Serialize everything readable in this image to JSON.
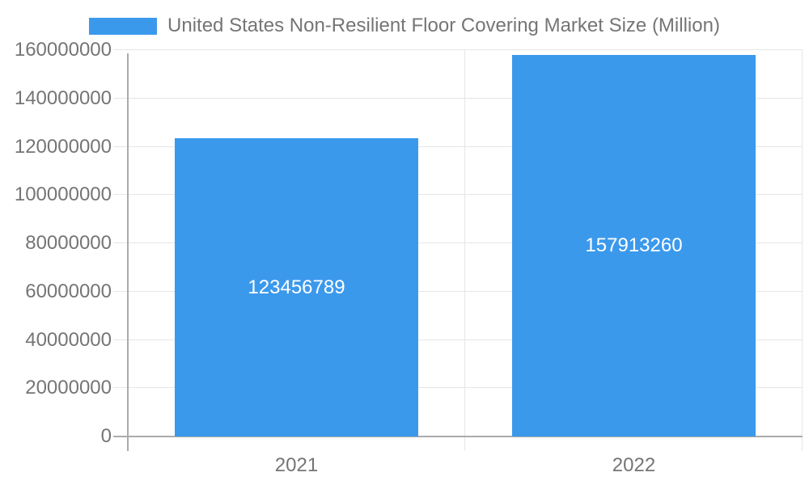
{
  "chart_data": {
    "type": "bar",
    "title": "United States Non-Resilient Floor Covering Market Size (Million)",
    "legend": {
      "label": "United States Non-Resilient Floor Covering Market Size (Million)",
      "position": "top"
    },
    "categories": [
      "2021",
      "2022"
    ],
    "series": [
      {
        "name": "United States Non-Resilient Floor Covering Market Size (Million)",
        "values": [
          123456789,
          157913260
        ]
      }
    ],
    "data_labels": [
      "123456789",
      "157913260"
    ],
    "xlabel": "",
    "ylabel": "",
    "ylim": [
      0,
      160000000
    ],
    "ytick_step": 20000000,
    "ytick_labels": [
      "0",
      "20000000",
      "40000000",
      "60000000",
      "80000000",
      "100000000",
      "120000000",
      "140000000",
      "160000000"
    ],
    "grid": true,
    "colors": {
      "bar": "#3b99ec",
      "grid": "#e6e6e6",
      "axis": "#ababab",
      "text": "#757575",
      "data_label": "#ffffff",
      "background": "#ffffff"
    }
  }
}
